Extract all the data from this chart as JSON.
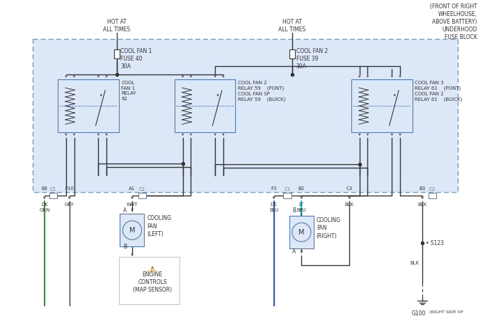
{
  "title": "(FRONT OF RIGHT\nWHEELHOUSE,\nABOVE BATTERY)\nUNDERHOOD\nFUSE BLOCK",
  "bg_color": "#ffffff",
  "fuse_block_bg": "#dce8f8",
  "fuse_block_border": "#7799bb",
  "relay_fill": "#dce8f8",
  "relay_border": "#5577aa",
  "motor_fill": "#dce8f8",
  "motor_border": "#5577aa",
  "wire_color": "#333333",
  "green_wire": "#339933",
  "blue_wire": "#2255cc",
  "cyan_wire": "#00bbcc",
  "orange_wire": "#cc7700",
  "connector_color": "#5577aa",
  "text_color": "#333333",
  "hot_label": "HOT AT\nALL TIMES",
  "fuse1_label": "COOL FAN 1\nFUSE 40\n30A",
  "fuse2_label": "COOL FAN 2\nFUSE 39\n30A",
  "relay1_label": "COOL\nFAN 1\nRELAY\n62",
  "relay2_label": "COOL FAN 2\nRELAY 59    (PONT)\nCOOL FAN SP\nRELAY 59    (BUICK)",
  "relay3_label": "COOL FAN 3\nRELAY 61    (PONT)\nCOOL FAN 2\nRELAY 61    (BUICK)",
  "motor_left_label": "COOLING\nFAN\n(LEFT)",
  "motor_right_label": "COOLING\nFAN\n(RIGHT)",
  "engine_label": "ENGINE\nCONTROLS\n(MAP SENSOR)",
  "ground_label": "G100",
  "s123_label": "S123",
  "right_side_label": "(RIGHT SIDE OF"
}
